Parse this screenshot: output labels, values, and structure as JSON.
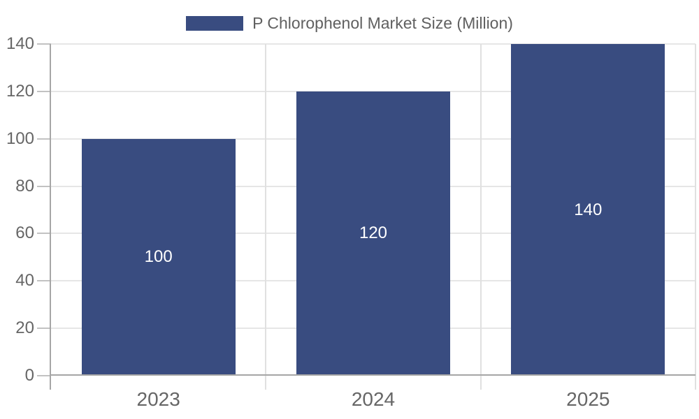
{
  "chart_data": {
    "type": "bar",
    "title": "P Chlorophenol Market Size (Million)",
    "categories": [
      "2023",
      "2024",
      "2025"
    ],
    "values": [
      100,
      120,
      140
    ],
    "xlabel": "",
    "ylabel": "",
    "ylim": [
      0,
      140
    ],
    "ytick_step": 20,
    "yticks": [
      0,
      20,
      40,
      60,
      80,
      100,
      120,
      140
    ],
    "data_labels": [
      "100",
      "120",
      "140"
    ],
    "legend": {
      "position": "top-center",
      "label": "P Chlorophenol Market Size (Million)"
    },
    "grid": "on",
    "colors": {
      "bar": "#394C80",
      "data_label": "#FFFFFF",
      "axis_text": "#666666",
      "legend_text": "#606060",
      "axis_line": "#A6A6A6",
      "gridline": "#E6E6E6",
      "gridline_vertical": "#E0E0E0",
      "tick": "#C2C2C2"
    }
  }
}
